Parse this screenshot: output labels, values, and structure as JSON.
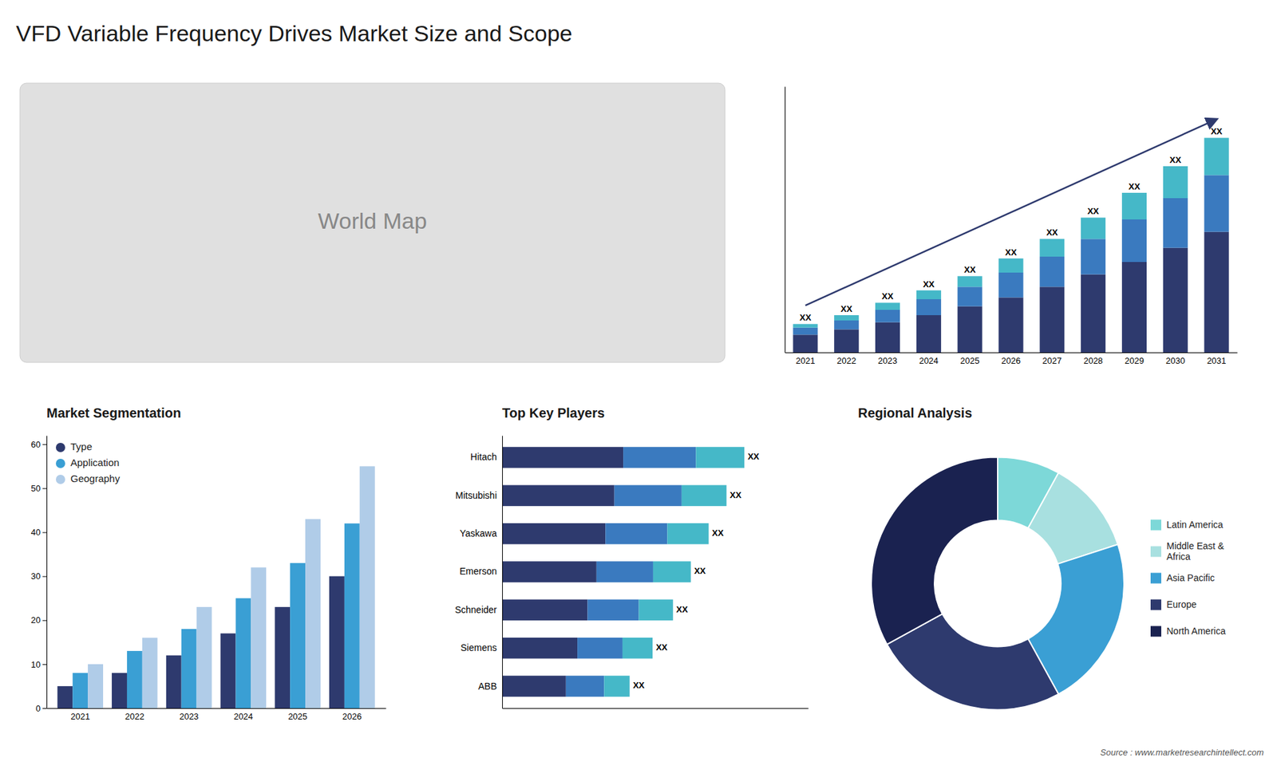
{
  "title": "VFD Variable Frequency Drives Market Size and Scope",
  "annotations": [
    "Source : www.marketresearchintellect.com"
  ],
  "chart_data": [
    {
      "type": "map",
      "title": "World Map"
    },
    {
      "type": "bar",
      "stacked": true,
      "categories": [
        "2021",
        "2022",
        "2023",
        "2024",
        "2025",
        "2026",
        "2027",
        "2028",
        "2029",
        "2030",
        "2031"
      ],
      "series": [
        {
          "color": "#2e3a6e",
          "values": [
            1,
            1.3,
            1.7,
            2.1,
            2.6,
            3.1,
            3.7,
            4.4,
            5.1,
            5.9,
            6.8
          ]
        },
        {
          "color": "#3a7abf",
          "values": [
            0.4,
            0.5,
            0.7,
            0.9,
            1.1,
            1.4,
            1.7,
            2.0,
            2.4,
            2.8,
            3.2
          ]
        },
        {
          "color": "#45b8c8",
          "values": [
            0.2,
            0.3,
            0.4,
            0.5,
            0.6,
            0.8,
            1.0,
            1.2,
            1.5,
            1.8,
            2.1
          ],
          "value_labels": [
            "XX",
            "XX",
            "XX",
            "XX",
            "XX",
            "XX",
            "XX",
            "XX",
            "XX",
            "XX",
            "XX"
          ]
        }
      ],
      "ylim": [
        0,
        15
      ],
      "tick_labels": "x"
    },
    {
      "type": "bar",
      "title": "Market Segmentation",
      "categories": [
        "2021",
        "2022",
        "2023",
        "2024",
        "2025",
        "2026"
      ],
      "series": [
        {
          "name": "Type",
          "color": "#2e3a6e",
          "values": [
            5,
            8,
            12,
            17,
            23,
            30
          ]
        },
        {
          "name": "Application",
          "color": "#3a9fd4",
          "values": [
            8,
            13,
            18,
            25,
            33,
            42
          ]
        },
        {
          "name": "Geography",
          "color": "#b0cce8",
          "values": [
            10,
            16,
            23,
            32,
            43,
            55
          ]
        }
      ],
      "ylim": [
        0,
        62
      ],
      "yticks": [
        0,
        10,
        20,
        30,
        40,
        50,
        60
      ],
      "legend": "upper left",
      "grid": false
    },
    {
      "type": "bar",
      "title": "Top Key Players",
      "orientation": "horizontal",
      "stacked": true,
      "categories": [
        "Hitach",
        "Mitsubishi",
        "Yaskawa",
        "Emerson",
        "Schneider",
        "Siemens",
        "ABB"
      ],
      "series": [
        {
          "color": "#2e3a6e",
          "values": [
            4.75,
            4.4,
            4.05,
            3.7,
            3.35,
            2.95,
            2.5
          ]
        },
        {
          "color": "#3a7abf",
          "values": [
            2.85,
            2.64,
            2.43,
            2.22,
            2.01,
            1.77,
            1.5
          ]
        },
        {
          "color": "#45b8c8",
          "values": [
            1.9,
            1.76,
            1.62,
            1.48,
            1.34,
            1.18,
            1.0
          ],
          "value_labels": [
            "XX",
            "XX",
            "XX",
            "XX",
            "XX",
            "XX",
            "XX"
          ]
        }
      ],
      "xlim": [
        0,
        12
      ],
      "tick_labels": "y"
    },
    {
      "type": "pie",
      "title": "Regional Analysis",
      "categories": [
        "Latin America",
        "Middle East &\nAfrica",
        "Asia Pacific",
        "Europe",
        "North America"
      ],
      "values": [
        8,
        12,
        22,
        25,
        33
      ],
      "colors": [
        "#7dd8d8",
        "#a8e0e0",
        "#3a9fd4",
        "#2e3a6e",
        "#1a2250"
      ],
      "legend": "right"
    }
  ]
}
